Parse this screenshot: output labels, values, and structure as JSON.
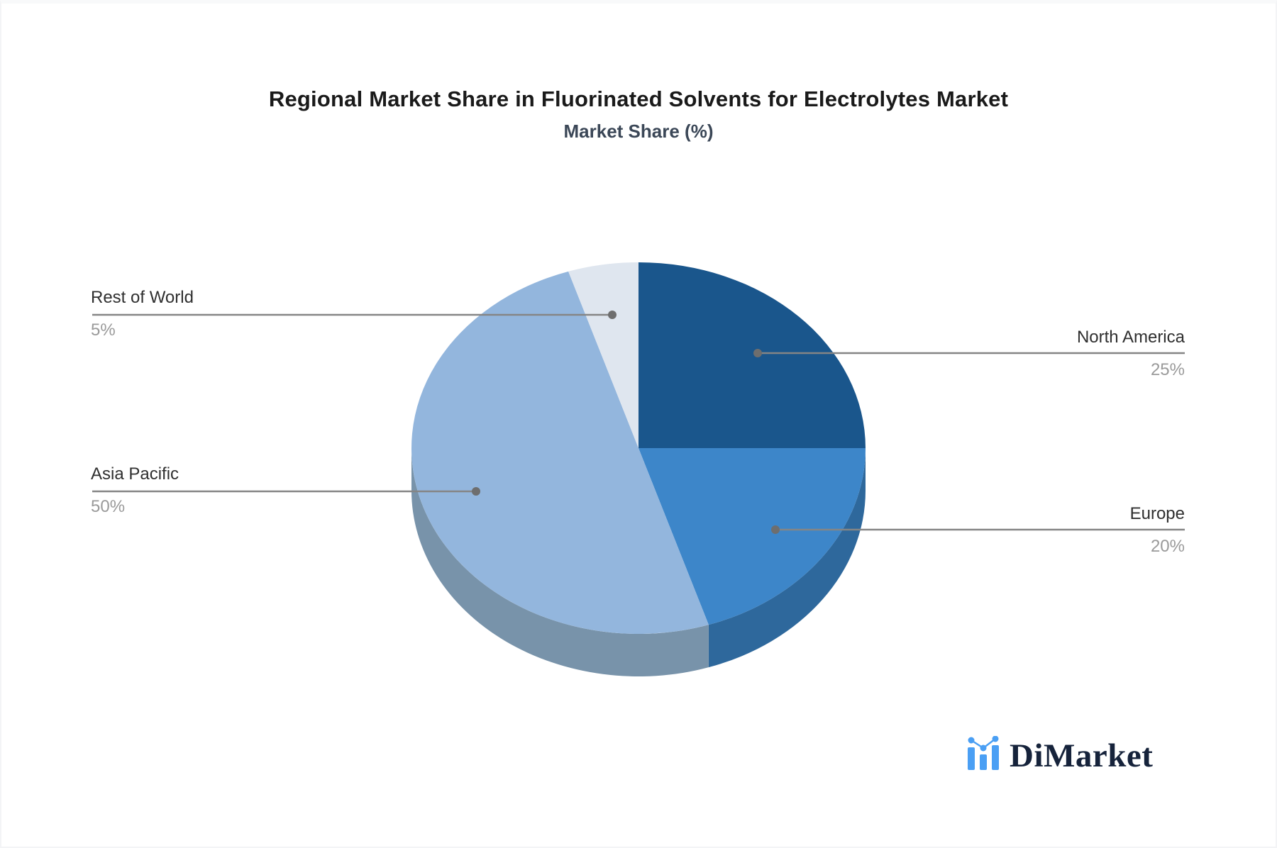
{
  "header": {
    "title": "Regional Market Share in Fluorinated Solvents for Electrolytes Market",
    "subtitle": "Market Share (%)",
    "title_color": "#1a1a1a",
    "subtitle_color": "#3b4757"
  },
  "chart_data": {
    "type": "pie",
    "title": "Regional Market Share in Fluorinated Solvents for Electrolytes Market",
    "subtitle": "Market Share (%)",
    "unit": "%",
    "style": "3d",
    "direction": "clockwise",
    "start_angle_deg": 0,
    "legend_position": "none",
    "categories": [
      "North America",
      "Europe",
      "Asia Pacific",
      "Rest of World"
    ],
    "values": [
      25,
      20,
      50,
      5
    ],
    "slices": [
      {
        "label": "North America",
        "value": 25,
        "display": "25%",
        "color": "#1a568c",
        "side_color": "#164a79"
      },
      {
        "label": "Europe",
        "value": 20,
        "display": "20%",
        "color": "#3d86c9",
        "side_color": "#2e689c"
      },
      {
        "label": "Asia Pacific",
        "value": 50,
        "display": "50%",
        "color": "#93b6dd",
        "side_color": "#7893aa"
      },
      {
        "label": "Rest of World",
        "value": 5,
        "display": "5%",
        "color": "#dfe6ef",
        "side_color": "#c7d2e0"
      }
    ]
  },
  "callouts": {
    "rest_of_world": {
      "label": "Rest of World",
      "value": "5%"
    },
    "asia_pacific": {
      "label": "Asia Pacific",
      "value": "50%"
    },
    "north_america": {
      "label": "North America",
      "value": "25%"
    },
    "europe": {
      "label": "Europe",
      "value": "20%"
    }
  },
  "branding": {
    "logo_text": "DiMarket",
    "logo_text_color": "#16233b",
    "logo_icon_color": "#4a9ff4"
  },
  "colors": {
    "background": "#ffffff",
    "leader_line": "#858585",
    "leader_dot": "#6e6e6e",
    "label_text": "#2f2f2f",
    "percent_text": "#9a9a9a"
  }
}
